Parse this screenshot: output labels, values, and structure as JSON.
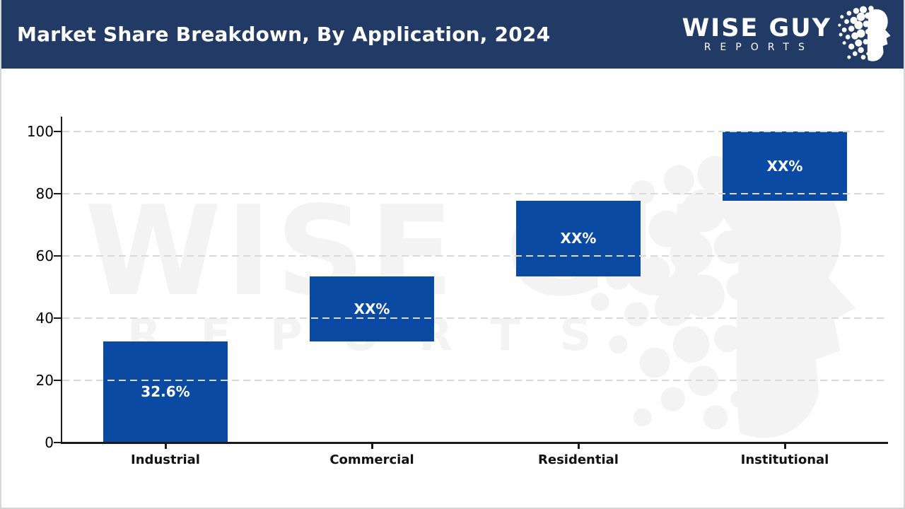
{
  "header": {
    "title": "Market Share Breakdown, By Application, 2024",
    "logo": {
      "line1": "WISE GUY",
      "line2": "REPORTS"
    }
  },
  "watermark": {
    "line1": "WISE GUY",
    "line2": "REPORTS"
  },
  "colors": {
    "header_bg": "#213a66",
    "bar": "#0b4aa2",
    "bar_label": "#ffffff",
    "axis": "#1a1a1a",
    "grid": "#d9d9d9",
    "tick_label": "#000000",
    "category_label": "#111111",
    "watermark": "#f3f3f3"
  },
  "chart_data": {
    "type": "bar",
    "subtype": "waterfall",
    "title": "Market Share Breakdown, By Application, 2024",
    "categories": [
      "Industrial",
      "Commercial",
      "Residential",
      "Institutional"
    ],
    "segments": [
      {
        "category": "Industrial",
        "start": 0,
        "end": 32.6,
        "label": "32.6%"
      },
      {
        "category": "Commercial",
        "start": 32.6,
        "end": 53.4,
        "label": "XX%"
      },
      {
        "category": "Residential",
        "start": 53.4,
        "end": 77.8,
        "label": "XX%"
      },
      {
        "category": "Institutional",
        "start": 77.8,
        "end": 100,
        "label": "XX%"
      }
    ],
    "yticks": [
      0,
      20,
      40,
      60,
      80,
      100
    ],
    "ylim": [
      0,
      105
    ],
    "xlabel": "",
    "ylabel": "",
    "legend": "none",
    "grid": true,
    "grid_style": "dashed",
    "grid_over_bars": true
  }
}
